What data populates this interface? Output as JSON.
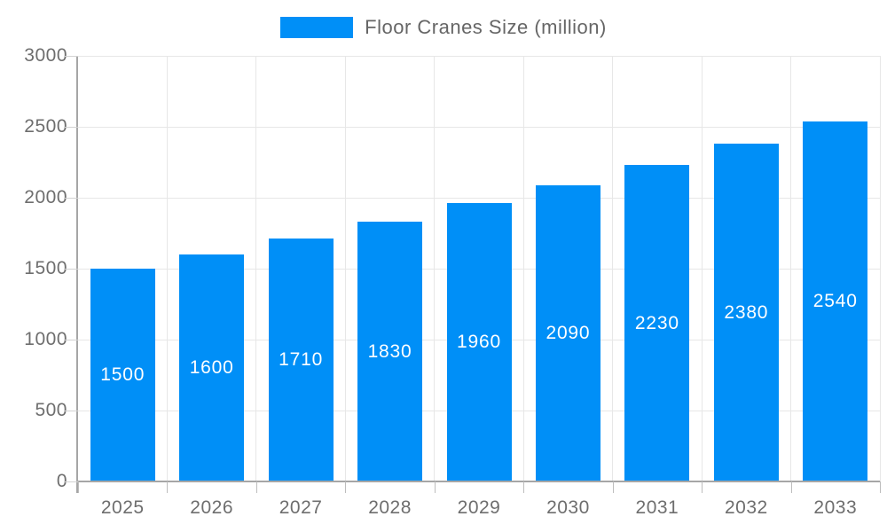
{
  "chart_data": {
    "type": "bar",
    "title": "Floor Cranes Size (million)",
    "categories": [
      "2025",
      "2026",
      "2027",
      "2028",
      "2029",
      "2030",
      "2031",
      "2032",
      "2033"
    ],
    "values": [
      1500,
      1600,
      1710,
      1830,
      1960,
      2090,
      2230,
      2380,
      2540
    ],
    "xlabel": "",
    "ylabel": "",
    "ylim": [
      0,
      3000
    ],
    "ytick_step": 500,
    "grid": true,
    "legend_position": "top-center",
    "colors": {
      "bar": "#008FF7",
      "bar_label": "#ffffff",
      "axis_line": "#a6a6a6",
      "gridline": "#e7e7e7",
      "tick_text": "#6e6e6e",
      "legend_text": "#666666"
    }
  }
}
